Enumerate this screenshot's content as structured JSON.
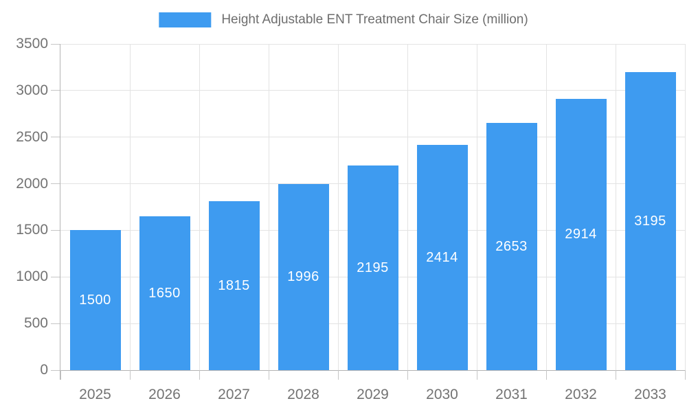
{
  "chart_data": {
    "type": "bar",
    "title": "Height Adjustable ENT Treatment Chair Size (million)",
    "series": [
      {
        "name": "Height Adjustable ENT Treatment Chair Size (million)",
        "values": [
          1500,
          1650,
          1815,
          1996,
          2195,
          2414,
          2653,
          2914,
          3195
        ]
      }
    ],
    "categories": [
      "2025",
      "2026",
      "2027",
      "2028",
      "2029",
      "2030",
      "2031",
      "2032",
      "2033"
    ],
    "values": [
      1500,
      1650,
      1815,
      1996,
      2195,
      2414,
      2653,
      2914,
      3195
    ],
    "value_labels": [
      "1500",
      "1650",
      "1815",
      "1996",
      "2195",
      "2414",
      "2653",
      "2914",
      "3195"
    ],
    "xlabel": "",
    "ylabel": "",
    "ylim": [
      0,
      3500
    ],
    "yticks": [
      "0",
      "500",
      "1000",
      "1500",
      "2000",
      "2500",
      "3000",
      "3500"
    ],
    "grid": true,
    "legend_position": "top-center",
    "bar_color": "#3e9bf0",
    "bar_label_color": "#ffffff",
    "axis_text_color": "#737373",
    "gridline_color": "#e3e3e3",
    "axis_line_color": "#b3b3b3"
  }
}
